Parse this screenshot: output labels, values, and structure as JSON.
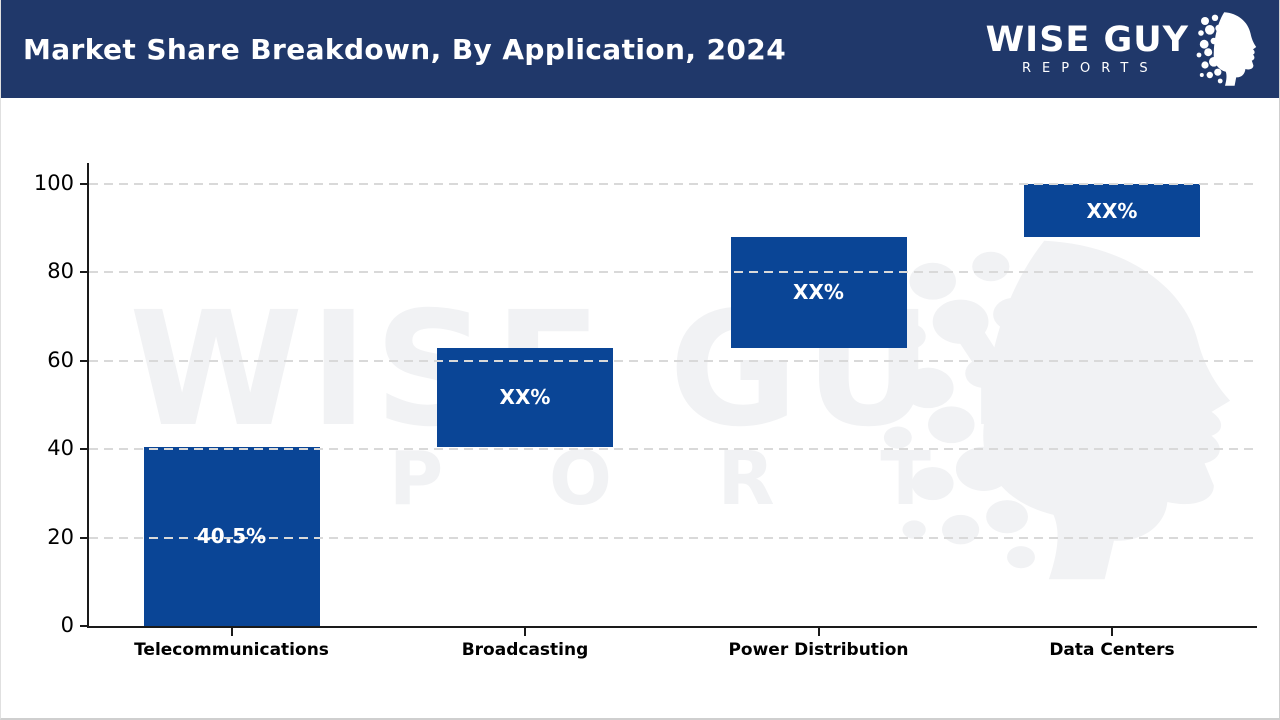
{
  "header": {
    "title": "Market Share Breakdown, By Application, 2024"
  },
  "logo": {
    "line1": "WISE GUY",
    "line2": "REPORTS",
    "head_icon": "dotted-head-profile"
  },
  "watermark": {
    "line1": "WISE GUY",
    "line2": "P O R T S",
    "head_icon": "dotted-head-profile"
  },
  "chart_data": {
    "type": "bar",
    "subtype": "waterfall",
    "title": "Market Share Breakdown, By Application, 2024",
    "categories": [
      "Telecommunications",
      "Broadcasting",
      "Power Distribution",
      "Data Centers"
    ],
    "segments": [
      {
        "category": "Telecommunications",
        "start": 0,
        "end": 40.5,
        "value": 40.5,
        "label": "40.5%"
      },
      {
        "category": "Broadcasting",
        "start": 40.5,
        "end": 63,
        "value": 22.5,
        "label": "XX%"
      },
      {
        "category": "Power Distribution",
        "start": 63,
        "end": 88,
        "value": 25,
        "label": "XX%"
      },
      {
        "category": "Data Centers",
        "start": 88,
        "end": 100,
        "value": 12,
        "label": "XX%"
      }
    ],
    "xlabel": "",
    "ylabel": "",
    "ylim": [
      0,
      105
    ],
    "yticks": [
      0,
      20,
      40,
      60,
      80,
      100
    ],
    "grid": "horizontal-dashed",
    "legend": null,
    "bar_color": "#0a4596",
    "bar_label_color": "#ffffff",
    "axis_color": "#1a1a1a",
    "gridline_color": "#d9d9d9",
    "header_color": "#20386a",
    "watermark_color": "#f1f2f4"
  }
}
